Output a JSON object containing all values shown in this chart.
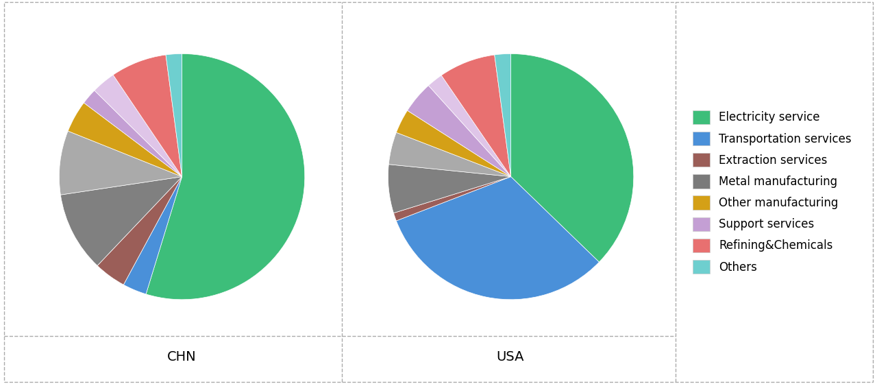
{
  "legend_labels": [
    "Electricity service",
    "Transportation services",
    "Extraction services",
    "Metal manufacturing",
    "Other manufacturing",
    "Support services",
    "Refining&Chemicals",
    "Others"
  ],
  "legend_colors": [
    "#3DBE7A",
    "#4A90D9",
    "#9B5E58",
    "#7A7A7A",
    "#D4A017",
    "#C49FD4",
    "#E87070",
    "#6ECFCF"
  ],
  "chn_values": [
    52,
    3,
    4,
    10,
    8,
    4,
    2,
    3,
    7,
    2
  ],
  "chn_colors": [
    "#3DBE7A",
    "#4A90D9",
    "#9B5E58",
    "#808080",
    "#AAAAAA",
    "#D4A017",
    "#C49FD4",
    "#DFC5E8",
    "#E87070",
    "#6ECFCF"
  ],
  "usa_values": [
    35,
    30,
    1,
    6,
    4,
    3,
    4,
    2,
    7,
    2
  ],
  "usa_colors": [
    "#3DBE7A",
    "#4A90D9",
    "#9B5E58",
    "#808080",
    "#AAAAAA",
    "#D4A017",
    "#C49FD4",
    "#DFC5E8",
    "#E87070",
    "#6ECFCF"
  ],
  "chn_label": "CHN",
  "usa_label": "USA",
  "background_color": "#FFFFFF",
  "border_color": "#AAAAAA",
  "label_fontsize": 14,
  "legend_fontsize": 12
}
